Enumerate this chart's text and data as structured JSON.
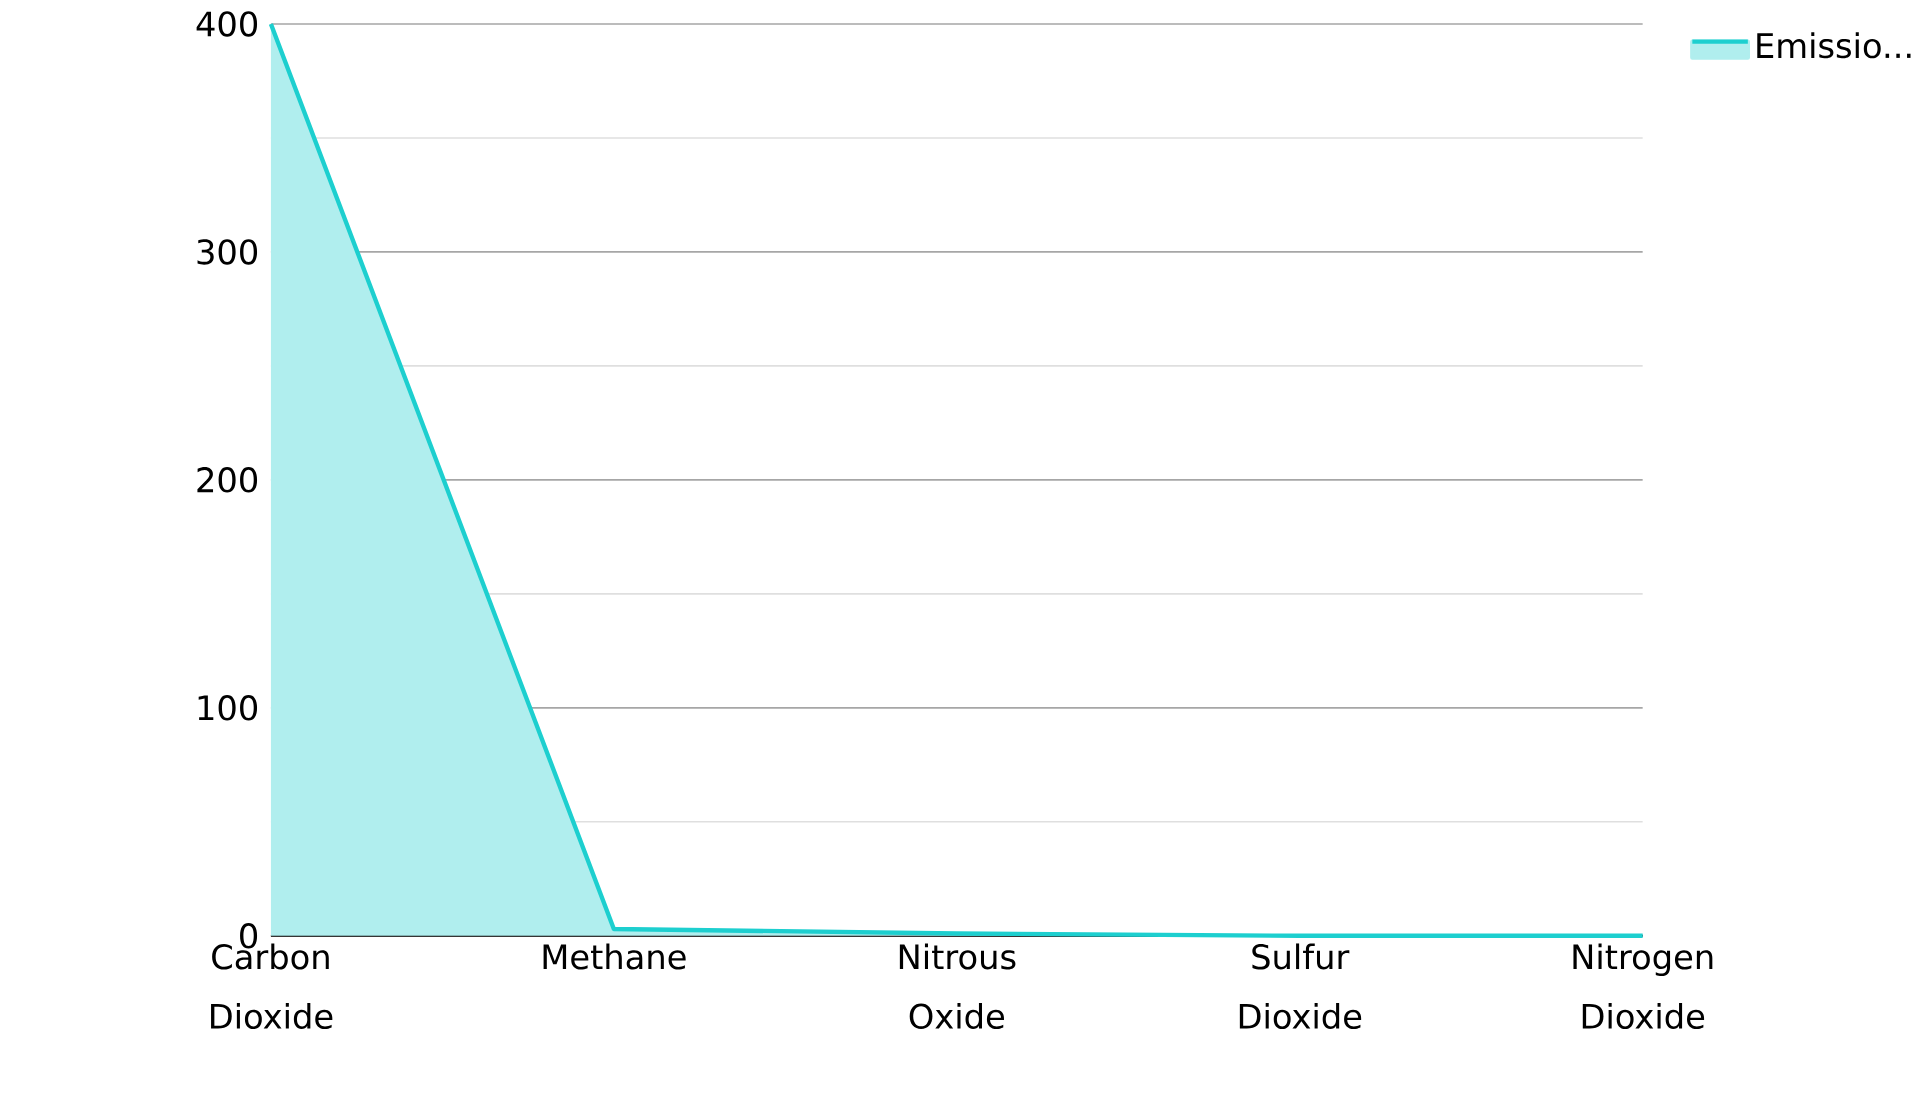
{
  "chart_data": {
    "type": "area",
    "categories": [
      "Carbon Dioxide",
      "Methane",
      "Nitrous Oxide",
      "Sulfur Dioxide",
      "Nitrogen Dioxide"
    ],
    "series": [
      {
        "name": "Emissio...",
        "color": "#1dcfcf",
        "values": [
          400,
          3,
          1,
          0,
          0
        ]
      }
    ],
    "ylim": [
      0,
      400
    ],
    "yticks": [
      0,
      100,
      200,
      300,
      400
    ],
    "grid": "y",
    "legend": "top right"
  }
}
